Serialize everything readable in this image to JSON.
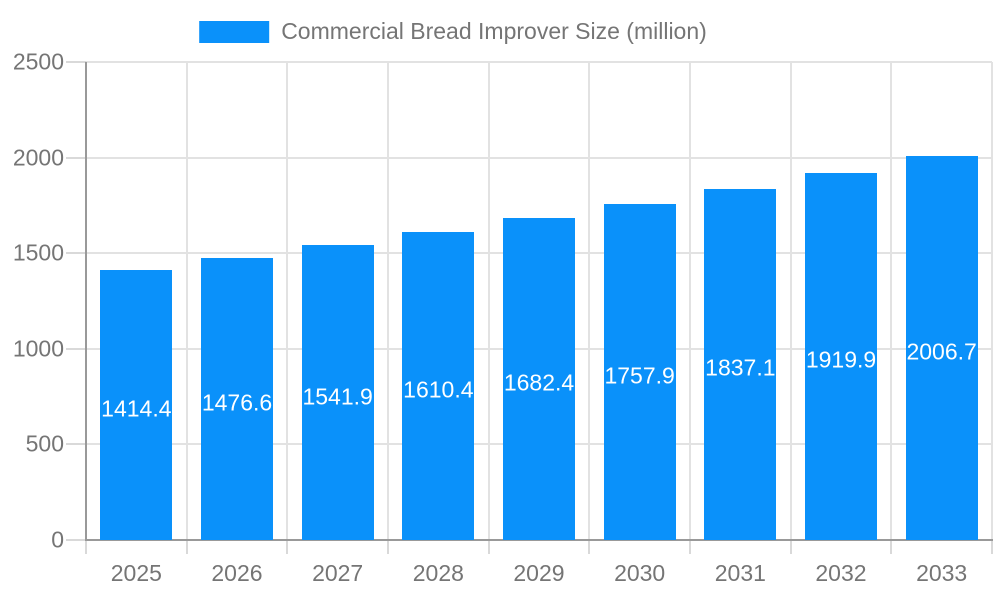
{
  "chart_data": {
    "type": "bar",
    "title": "Commercial Bread Improver Size (million)",
    "legend_entries": [
      "Commercial Bread Improver Size (million)"
    ],
    "legend_position": "top-center",
    "categories": [
      "2025",
      "2026",
      "2027",
      "2028",
      "2029",
      "2030",
      "2031",
      "2032",
      "2033"
    ],
    "values": [
      1414.4,
      1476.6,
      1541.9,
      1610.4,
      1682.4,
      1757.9,
      1837.1,
      1919.9,
      2006.7
    ],
    "value_labels": [
      "1414.4",
      "1476.6",
      "1541.9",
      "1610.4",
      "1682.4",
      "1757.9",
      "1837.1",
      "1919.9",
      "2006.7"
    ],
    "value_label_position": "inside-center",
    "xlabel": "",
    "ylabel": "",
    "ylim": [
      0,
      2500
    ],
    "yticks": [
      0,
      500,
      1000,
      1500,
      2000,
      2500
    ],
    "grid": true,
    "colors": {
      "bar": "#0a91fa",
      "value_label": "#ffffff",
      "axis_line": "#999999",
      "grid_line": "#e2e2e2",
      "tick_line": "#d9d9d9",
      "tick_label": "#757575",
      "legend_text": "#757575"
    }
  }
}
